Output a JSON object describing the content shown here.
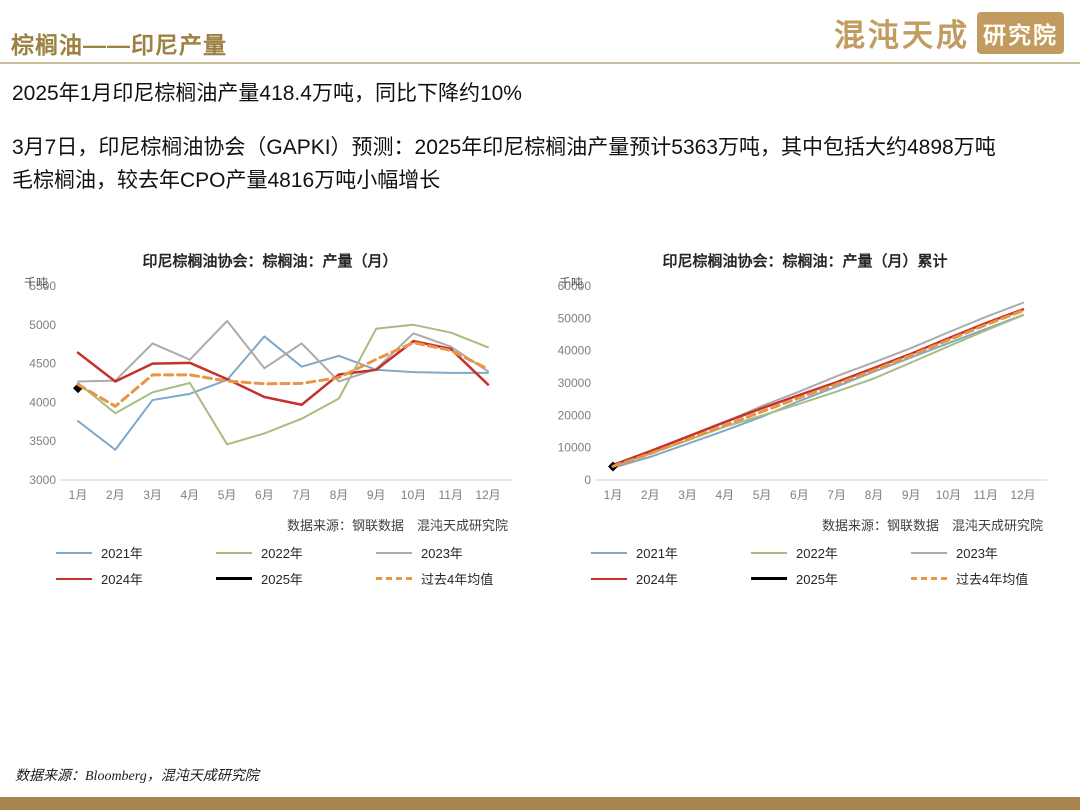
{
  "header": {
    "title": "棕榈油——印尼产量",
    "logo_text": "混沌天成",
    "logo_seal": "研究院"
  },
  "body": {
    "paragraph1": "2025年1月印尼棕榈油产量418.4万吨，同比下降约10%",
    "paragraph2": "3月7日，印尼棕榈油协会（GAPKI）预测：2025年印尼棕榈油产量预计5363万吨，其中包括大约4898万吨毛棕榈油，较去年CPO产量4816万吨小幅增长"
  },
  "footer": {
    "source": "数据来源：Bloomberg，混沌天成研究院"
  },
  "theme": {
    "accent_gold": "#9C8142",
    "divider_gold": "#CBC09C",
    "logo_gold": "#C19B60",
    "bottom_bar": "#A8834E",
    "text": "#111111",
    "axis_gray": "#7F7F7F"
  },
  "chart_data": [
    {
      "type": "line",
      "title": "印尼棕榈油协会：棕榈油：产量（月）",
      "ylabel": "千吨",
      "xlabel": "",
      "source": "数据来源：钢联数据　混沌天成研究院",
      "categories": [
        "1月",
        "2月",
        "3月",
        "4月",
        "5月",
        "6月",
        "7月",
        "8月",
        "9月",
        "10月",
        "11月",
        "12月"
      ],
      "ylim": [
        3000,
        5500
      ],
      "ytick_step": 500,
      "grid": false,
      "legend_position": "bottom",
      "series": [
        {
          "name": "2021年",
          "color": "#7FA8C9",
          "width": 2,
          "values": [
            3760,
            3390,
            4030,
            4110,
            4290,
            4850,
            4460,
            4600,
            4420,
            4390,
            4380,
            4380
          ]
        },
        {
          "name": "2022年",
          "color": "#A8BC80",
          "width": 2,
          "values": [
            4250,
            3860,
            4130,
            4250,
            3460,
            3600,
            3790,
            4050,
            4950,
            5000,
            4900,
            4710
          ]
        },
        {
          "name": "2023年",
          "color": "#ABABAB",
          "width": 2,
          "values": [
            4270,
            4280,
            4760,
            4550,
            5050,
            4440,
            4760,
            4270,
            4430,
            4890,
            4720,
            4400
          ]
        },
        {
          "name": "2024年",
          "color": "#C6302A",
          "width": 2.5,
          "values": [
            4640,
            4270,
            4500,
            4510,
            4300,
            4070,
            3970,
            4360,
            4420,
            4790,
            4690,
            4230
          ]
        },
        {
          "name": "2025年",
          "color": "#000000",
          "width": 3,
          "marker": "diamond",
          "values": [
            4184
          ]
        },
        {
          "name": "过去4年均值",
          "color": "#E79646",
          "width": 3,
          "dash": true,
          "values": [
            4230,
            3950,
            4355,
            4355,
            4275,
            4240,
            4245,
            4320,
            4555,
            4770,
            4670,
            4430
          ]
        }
      ]
    },
    {
      "type": "line",
      "title": "印尼棕榈油协会：棕榈油：产量（月）累计",
      "ylabel": "千吨",
      "xlabel": "",
      "source": "数据来源：钢联数据　混沌天成研究院",
      "categories": [
        "1月",
        "2月",
        "3月",
        "4月",
        "5月",
        "6月",
        "7月",
        "8月",
        "9月",
        "10月",
        "11月",
        "12月"
      ],
      "ylim": [
        0,
        60000
      ],
      "ytick_step": 10000,
      "grid": false,
      "legend_position": "bottom",
      "series": [
        {
          "name": "2021年",
          "color": "#7FA8C9",
          "width": 2,
          "values": [
            3760,
            7150,
            11180,
            15290,
            19580,
            24430,
            28890,
            33490,
            37910,
            42300,
            46680,
            51060
          ]
        },
        {
          "name": "2022年",
          "color": "#A8BC80",
          "width": 2,
          "values": [
            4250,
            8110,
            12240,
            16490,
            19950,
            23550,
            27340,
            31390,
            36340,
            41340,
            46240,
            50950
          ]
        },
        {
          "name": "2023年",
          "color": "#ABABAB",
          "width": 2,
          "values": [
            4270,
            8550,
            13310,
            17860,
            22910,
            27350,
            32110,
            36380,
            40810,
            45700,
            50420,
            54820
          ]
        },
        {
          "name": "2024年",
          "color": "#C6302A",
          "width": 2.5,
          "values": [
            4640,
            8910,
            13410,
            17920,
            22220,
            26290,
            30260,
            34620,
            39040,
            43830,
            48520,
            52750
          ]
        },
        {
          "name": "2025年",
          "color": "#000000",
          "width": 3,
          "marker": "diamond",
          "values": [
            4184
          ]
        },
        {
          "name": "过去4年均值",
          "color": "#E79646",
          "width": 3,
          "dash": true,
          "values": [
            4230,
            8180,
            12535,
            16890,
            21165,
            25405,
            29650,
            33970,
            38525,
            43295,
            47965,
            52395
          ]
        }
      ]
    }
  ]
}
